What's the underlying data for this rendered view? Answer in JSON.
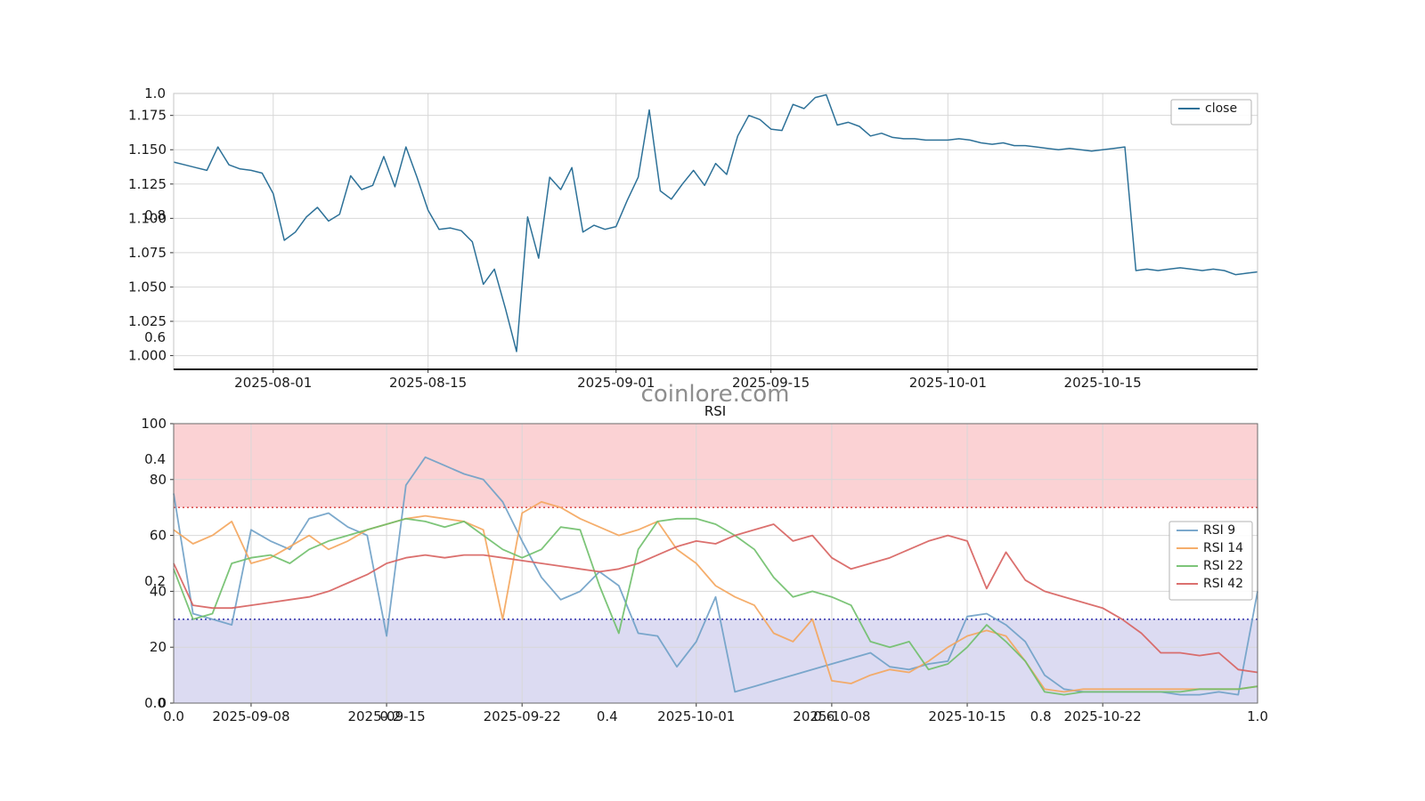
{
  "watermark": "coinlore.com",
  "overlay_axis": {
    "x_ticks": [
      "0.0",
      "0.2",
      "0.4",
      "0.6",
      "0.8",
      "1.0"
    ],
    "y_ticks": [
      "1.0",
      "0.8",
      "0.6",
      "0.4",
      "0.2",
      "0.0"
    ]
  },
  "chart_data": [
    {
      "type": "line",
      "name": "close-price",
      "title": "",
      "x_start": "2025-07-23",
      "x_freq": "daily",
      "x_tick_labels": [
        "2025-08-01",
        "2025-08-15",
        "2025-09-01",
        "2025-09-15",
        "2025-10-01",
        "2025-10-15"
      ],
      "y_ticks": [
        "1.000",
        "1.025",
        "1.050",
        "1.075",
        "1.100",
        "1.125",
        "1.150",
        "1.175"
      ],
      "ylim": [
        0.99,
        1.191
      ],
      "grid": true,
      "legend_position": "upper right",
      "dark_bottom_spine": true,
      "box_color": "#c4c4c4",
      "series": [
        {
          "name": "close",
          "color": "#2d7198",
          "width": 1.5,
          "opacity": 1,
          "values": [
            1.141,
            1.139,
            1.137,
            1.135,
            1.152,
            1.139,
            1.136,
            1.135,
            1.133,
            1.118,
            1.084,
            1.09,
            1.101,
            1.108,
            1.098,
            1.103,
            1.131,
            1.121,
            1.124,
            1.145,
            1.123,
            1.152,
            1.13,
            1.106,
            1.092,
            1.093,
            1.091,
            1.083,
            1.052,
            1.063,
            1.034,
            1.003,
            1.101,
            1.071,
            1.13,
            1.121,
            1.137,
            1.09,
            1.095,
            1.092,
            1.094,
            1.113,
            1.13,
            1.179,
            1.12,
            1.114,
            1.125,
            1.135,
            1.124,
            1.14,
            1.132,
            1.16,
            1.175,
            1.172,
            1.165,
            1.164,
            1.183,
            1.18,
            1.188,
            1.19,
            1.168,
            1.17,
            1.167,
            1.16,
            1.162,
            1.159,
            1.158,
            1.158,
            1.157,
            1.157,
            1.157,
            1.158,
            1.157,
            1.155,
            1.154,
            1.155,
            1.153,
            1.153,
            1.152,
            1.151,
            1.15,
            1.151,
            1.15,
            1.149,
            1.15,
            1.151,
            1.152,
            1.062,
            1.063,
            1.062,
            1.063,
            1.064,
            1.063,
            1.062,
            1.063,
            1.062,
            1.059,
            1.06,
            1.061
          ]
        }
      ]
    },
    {
      "type": "line",
      "name": "rsi",
      "title": "RSI",
      "x_start": "2025-09-04",
      "x_freq": "daily",
      "x_tick_labels": [
        "2025-09-08",
        "2025-09-15",
        "2025-09-22",
        "2025-10-01",
        "2025-10-08",
        "2025-10-15",
        "2025-10-22"
      ],
      "y_ticks": [
        "0",
        "20",
        "40",
        "60",
        "80",
        "100"
      ],
      "ylim": [
        0,
        100
      ],
      "grid": true,
      "legend_position": "center right",
      "box_color": "#6a6a6a",
      "bands": [
        {
          "from": 70,
          "to": 100,
          "color": "#fbd2d4",
          "label": "overbought-zone"
        },
        {
          "from": 0,
          "to": 30,
          "color": "#dcdbf2",
          "label": "oversold-zone"
        }
      ],
      "hlines": [
        {
          "y": 70,
          "color": "#d43d3d",
          "style": "dotted"
        },
        {
          "y": 30,
          "color": "#2323a8",
          "style": "dotted"
        }
      ],
      "series": [
        {
          "name": "RSI 9",
          "color": "#6ea0c7",
          "values": [
            75,
            32,
            30,
            28,
            62,
            58,
            55,
            66,
            68,
            63,
            60,
            24,
            78,
            88,
            85,
            82,
            80,
            72,
            58,
            45,
            37,
            40,
            47,
            42,
            25,
            24,
            13,
            22,
            38,
            4,
            6,
            8,
            10,
            12,
            14,
            16,
            18,
            13,
            12,
            14,
            15,
            31,
            32,
            28,
            22,
            10,
            5,
            4,
            4,
            4,
            4,
            4,
            3,
            3,
            4,
            3,
            40
          ]
        },
        {
          "name": "RSI 14",
          "color": "#f4a55c",
          "values": [
            62,
            57,
            60,
            65,
            50,
            52,
            56,
            60,
            55,
            58,
            62,
            64,
            66,
            67,
            66,
            65,
            62,
            30,
            68,
            72,
            70,
            66,
            63,
            60,
            62,
            65,
            55,
            50,
            42,
            38,
            35,
            25,
            22,
            30,
            8,
            7,
            10,
            12,
            11,
            15,
            20,
            24,
            26,
            24,
            15,
            5,
            4,
            5,
            5,
            5,
            5,
            5,
            5,
            5,
            5,
            5,
            6
          ]
        },
        {
          "name": "RSI 22",
          "color": "#6fbf6a",
          "values": [
            48,
            30,
            32,
            50,
            52,
            53,
            50,
            55,
            58,
            60,
            62,
            64,
            66,
            65,
            63,
            65,
            60,
            55,
            52,
            55,
            63,
            62,
            42,
            25,
            55,
            65,
            66,
            66,
            64,
            60,
            55,
            45,
            38,
            40,
            38,
            35,
            22,
            20,
            22,
            12,
            14,
            20,
            28,
            22,
            15,
            4,
            3,
            4,
            4,
            4,
            4,
            4,
            4,
            5,
            5,
            5,
            6
          ]
        },
        {
          "name": "RSI 42",
          "color": "#d7615e",
          "values": [
            50,
            35,
            34,
            34,
            35,
            36,
            37,
            38,
            40,
            43,
            46,
            50,
            52,
            53,
            52,
            53,
            53,
            52,
            51,
            50,
            49,
            48,
            47,
            48,
            50,
            53,
            56,
            58,
            57,
            60,
            62,
            64,
            58,
            60,
            52,
            48,
            50,
            52,
            55,
            58,
            60,
            58,
            41,
            54,
            44,
            40,
            38,
            36,
            34,
            30,
            25,
            18,
            18,
            17,
            18,
            12,
            11
          ]
        }
      ]
    }
  ]
}
